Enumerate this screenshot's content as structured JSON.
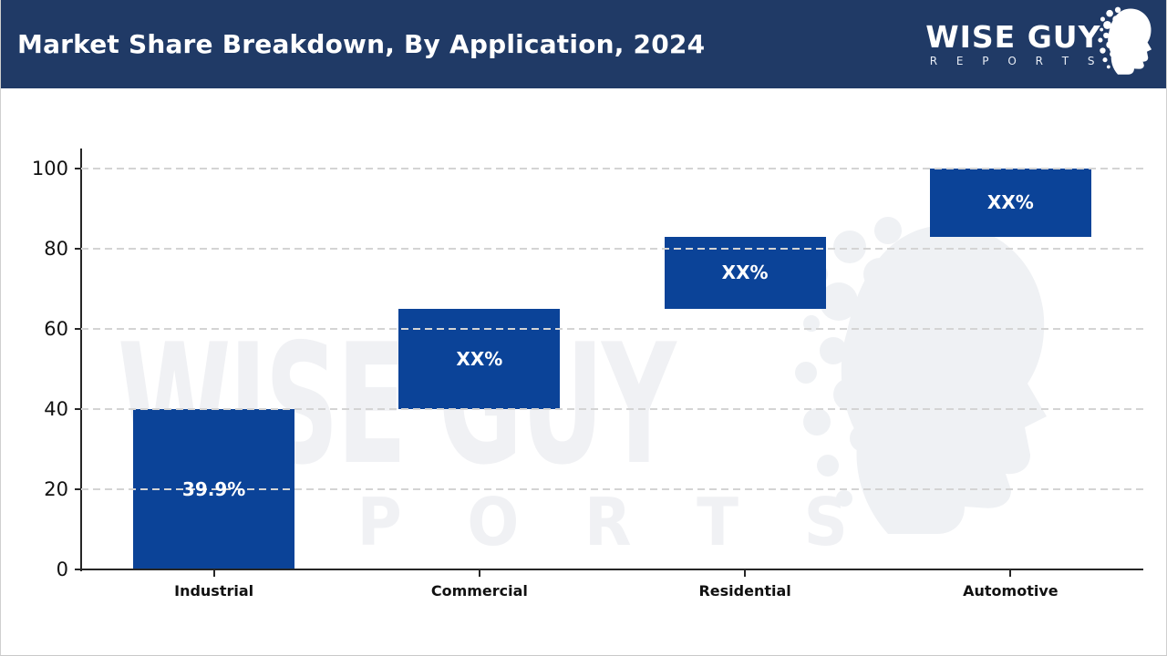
{
  "header": {
    "title": "Market Share Breakdown, By Application, 2024",
    "logo": {
      "line1": "WISE GUY",
      "line2": "R E P O R T S",
      "icon": "dotted-head-profile"
    },
    "bg_color": "#203a66"
  },
  "watermark": {
    "line1": "WISE GUY",
    "line2": "R E P O R T S",
    "icon": "dotted-head-profile"
  },
  "chart_data": {
    "type": "bar",
    "subtype": "waterfall",
    "title": "Market Share Breakdown, By Application, 2024",
    "categories": [
      "Industrial",
      "Commercial",
      "Residential",
      "Automotive"
    ],
    "segments": [
      {
        "category": "Industrial",
        "start": 0,
        "end": 39.9,
        "label": "39.9%"
      },
      {
        "category": "Commercial",
        "start": 39.9,
        "end": 65,
        "label": "XX%"
      },
      {
        "category": "Residential",
        "start": 65,
        "end": 83,
        "label": "XX%"
      },
      {
        "category": "Automotive",
        "start": 83,
        "end": 100,
        "label": "XX%"
      }
    ],
    "yticks": [
      0,
      20,
      40,
      60,
      80,
      100
    ],
    "ylim": [
      0,
      105
    ],
    "xlabel": "",
    "ylabel": "",
    "grid": "dashed-horizontal",
    "legend": "none",
    "bar_color": "#0b4398",
    "bar_label_color": "#ffffff",
    "axis_color": "#262626",
    "grid_color": "#d4d4d4"
  }
}
